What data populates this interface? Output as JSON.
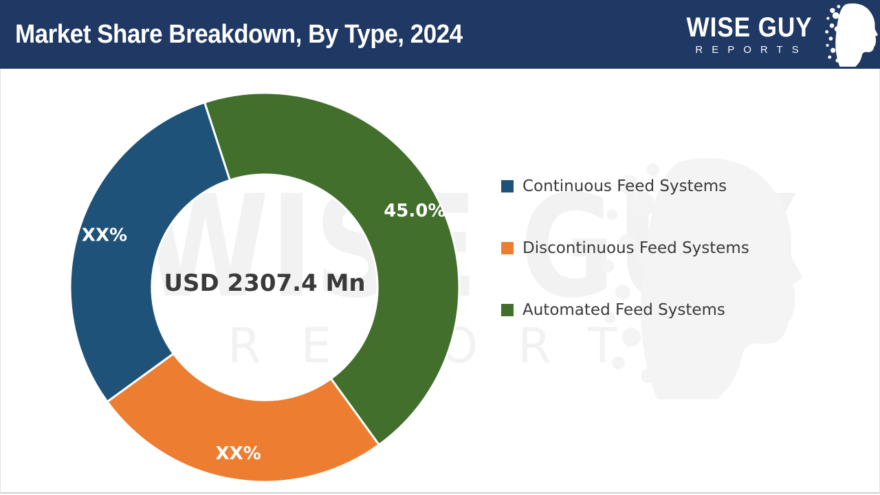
{
  "header": {
    "title": "Market Share Breakdown, By Type, 2024",
    "logo": {
      "line1": "WISE GUY",
      "line2": "REPORTS"
    }
  },
  "watermark": {
    "line1": "WISE GUY",
    "line2": "REPORTS"
  },
  "chart_data": {
    "type": "donut",
    "title": "Market Share Breakdown, By Type, 2024",
    "center_label": "USD 2307.4 Mn",
    "start_angle_deg_clockwise_from_top": -18,
    "slices": [
      {
        "name": "Automated Feed Systems",
        "display_label": "45.0%",
        "value_pct": 45.0,
        "color": "#426F2B",
        "value_is_masked": false
      },
      {
        "name": "Discontinuous Feed Systems",
        "display_label": "XX%",
        "value_pct": 25.0,
        "color": "#ED7D31",
        "value_is_masked": true
      },
      {
        "name": "Continuous Feed Systems",
        "display_label": "XX%",
        "value_pct": 30.0,
        "color": "#1F5278",
        "value_is_masked": true
      }
    ],
    "legend": {
      "position": "right",
      "items": [
        {
          "label": "Continuous Feed Systems",
          "color": "#1F5278"
        },
        {
          "label": "Discontinuous Feed Systems",
          "color": "#ED7D31"
        },
        {
          "label": "Automated Feed Systems",
          "color": "#426F2B"
        }
      ]
    },
    "colors": {
      "header_bg": "#1F3864",
      "slice_label_text": "#FFFFFF",
      "center_text": "#3A3A3A",
      "legend_text": "#3A3A3A",
      "watermark": "#F2F2F3"
    }
  }
}
